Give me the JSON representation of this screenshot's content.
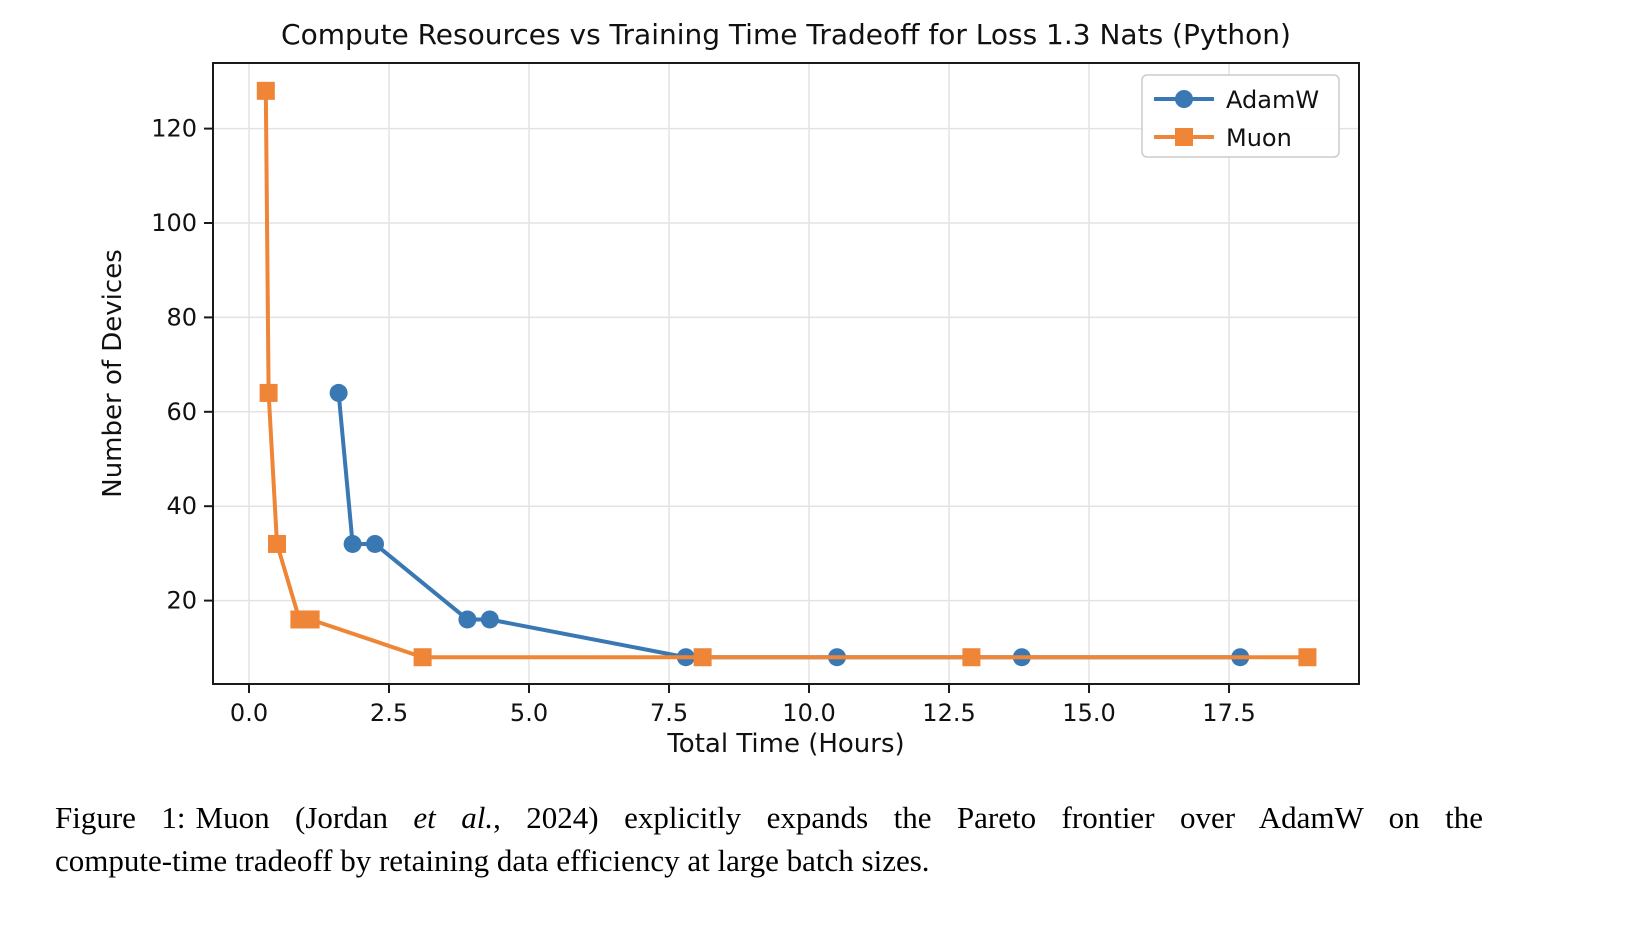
{
  "figure": {
    "title": "Compute Resources vs Training Time Tradeoff for Loss 1.3 Nats (Python)",
    "xlabel": "Total Time (Hours)",
    "ylabel": "Number of Devices"
  },
  "chart_data": {
    "type": "line",
    "title": "Compute Resources vs Training Time Tradeoff for Loss 1.3 Nats (Python)",
    "xlabel": "Total Time (Hours)",
    "ylabel": "Number of Devices",
    "grid": true,
    "legend_position": "upper right",
    "xlim": [
      -0.643,
      19.821
    ],
    "ylim": [
      2.33,
      133.9
    ],
    "x_ticks": [
      0.0,
      2.5,
      5.0,
      7.5,
      10.0,
      12.5,
      15.0,
      17.5
    ],
    "x_tick_labels": [
      "0.0",
      "2.5",
      "5.0",
      "7.5",
      "10.0",
      "12.5",
      "15.0",
      "17.5"
    ],
    "y_ticks": [
      20,
      40,
      60,
      80,
      100,
      120
    ],
    "y_tick_labels": [
      "20",
      "40",
      "60",
      "80",
      "100",
      "120"
    ],
    "series": [
      {
        "name": "AdamW",
        "color": "#3a78b3",
        "marker": "circle",
        "points": [
          [
            1.6,
            64
          ],
          [
            1.85,
            32
          ],
          [
            2.25,
            32
          ],
          [
            3.9,
            16
          ],
          [
            4.3,
            16
          ],
          [
            7.8,
            8
          ],
          [
            10.5,
            8
          ],
          [
            13.8,
            8
          ],
          [
            17.7,
            8
          ]
        ]
      },
      {
        "name": "Muon",
        "color": "#ef8536",
        "marker": "square",
        "points": [
          [
            0.3,
            128
          ],
          [
            0.35,
            64
          ],
          [
            0.5,
            32
          ],
          [
            0.9,
            16
          ],
          [
            1.1,
            16
          ],
          [
            3.1,
            8
          ],
          [
            8.1,
            8
          ],
          [
            12.9,
            8
          ],
          [
            18.9,
            8
          ]
        ]
      }
    ],
    "colors": {
      "grid": "#e3e3e3",
      "spine": "#1a1a1a",
      "text": "#111111",
      "legend_border": "#cccccc"
    }
  },
  "caption": {
    "line1": {
      "label": "Figure 1:",
      "part1": "Muon (Jordan ",
      "italic": "et al.",
      "part2": ", 2024) explicitly expands the Pareto frontier over AdamW on the"
    },
    "line2": "compute-time tradeoff by retaining data efficiency at large batch sizes."
  }
}
